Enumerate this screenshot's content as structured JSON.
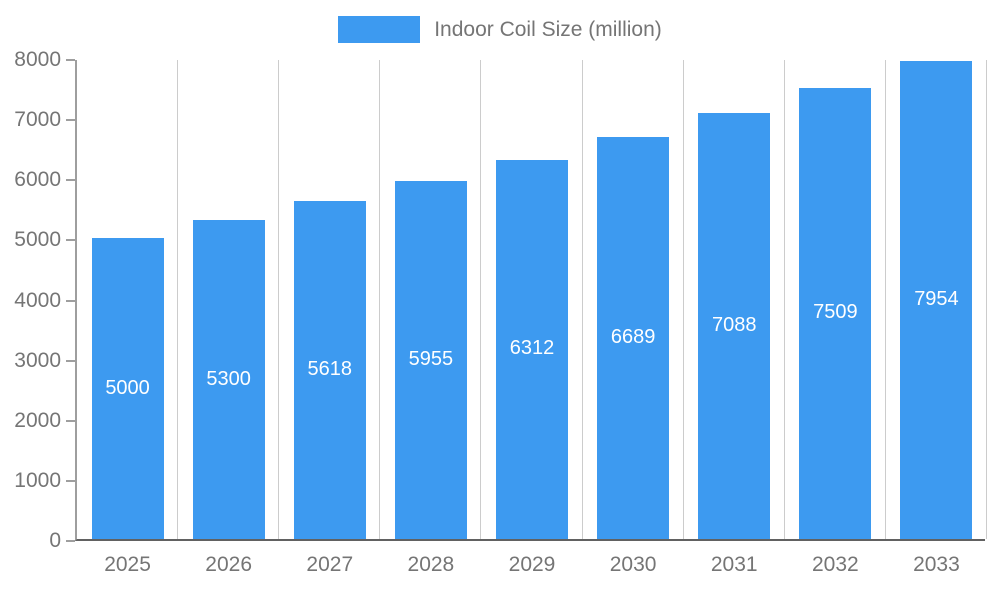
{
  "chart_data": {
    "type": "bar",
    "title": "",
    "legend": "Indoor Coil Size (million)",
    "legend_position": "top",
    "categories": [
      "2025",
      "2026",
      "2027",
      "2028",
      "2029",
      "2030",
      "2031",
      "2032",
      "2033"
    ],
    "series": [
      {
        "name": "Indoor Coil Size (million)",
        "values": [
          5000,
          5300,
          5618,
          5955,
          6312,
          6689,
          7088,
          7509,
          7954
        ]
      }
    ],
    "data_labels": [
      "5000",
      "5300",
      "5618",
      "5955",
      "6312",
      "6689",
      "7088",
      "7509",
      "7954"
    ],
    "xlabel": "",
    "ylabel": "",
    "ylim": [
      0,
      8000
    ],
    "ytick_step": 1000,
    "ytick_labels": [
      "0",
      "1000",
      "2000",
      "3000",
      "4000",
      "5000",
      "6000",
      "7000",
      "8000"
    ],
    "grid": "vertical-only",
    "colors": {
      "bar": "#3D9AF0",
      "bar_label_text": "#ffffff",
      "axis_text": "#757575",
      "grid_line": "#cccccc",
      "axis_line": "#616161"
    }
  }
}
